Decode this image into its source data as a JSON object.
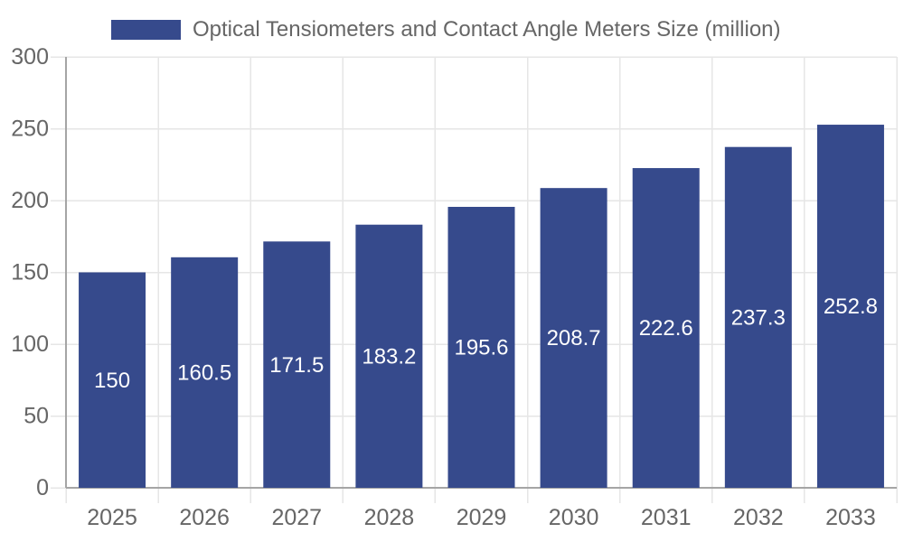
{
  "legend": {
    "label": "Optical Tensiometers and Contact Angle Meters Size (million)"
  },
  "chart_data": {
    "type": "bar",
    "title": "Optical Tensiometers and Contact Angle Meters Size (million)",
    "series_name": "Optical Tensiometers and Contact Angle Meters Size (million)",
    "categories": [
      "2025",
      "2026",
      "2027",
      "2028",
      "2029",
      "2030",
      "2031",
      "2032",
      "2033"
    ],
    "values": [
      150,
      160.5,
      171.5,
      183.2,
      195.6,
      208.7,
      222.6,
      237.3,
      252.8
    ],
    "value_labels": [
      "150",
      "160.5",
      "171.5",
      "183.2",
      "195.6",
      "208.7",
      "222.6",
      "237.3",
      "252.8"
    ],
    "xlabel": "",
    "ylabel": "",
    "ylim": [
      0,
      300
    ],
    "y_ticks": [
      0,
      50,
      100,
      150,
      200,
      250,
      300
    ],
    "grid": true,
    "legend_position": "top",
    "value_label_position": "inside-center",
    "colors": {
      "bar": "#364a8c",
      "value_label": "#ffffff",
      "axis_text": "#666666",
      "grid_line": "#e6e6e6",
      "axis_line": "#a5a5a5",
      "background": "#ffffff"
    }
  }
}
